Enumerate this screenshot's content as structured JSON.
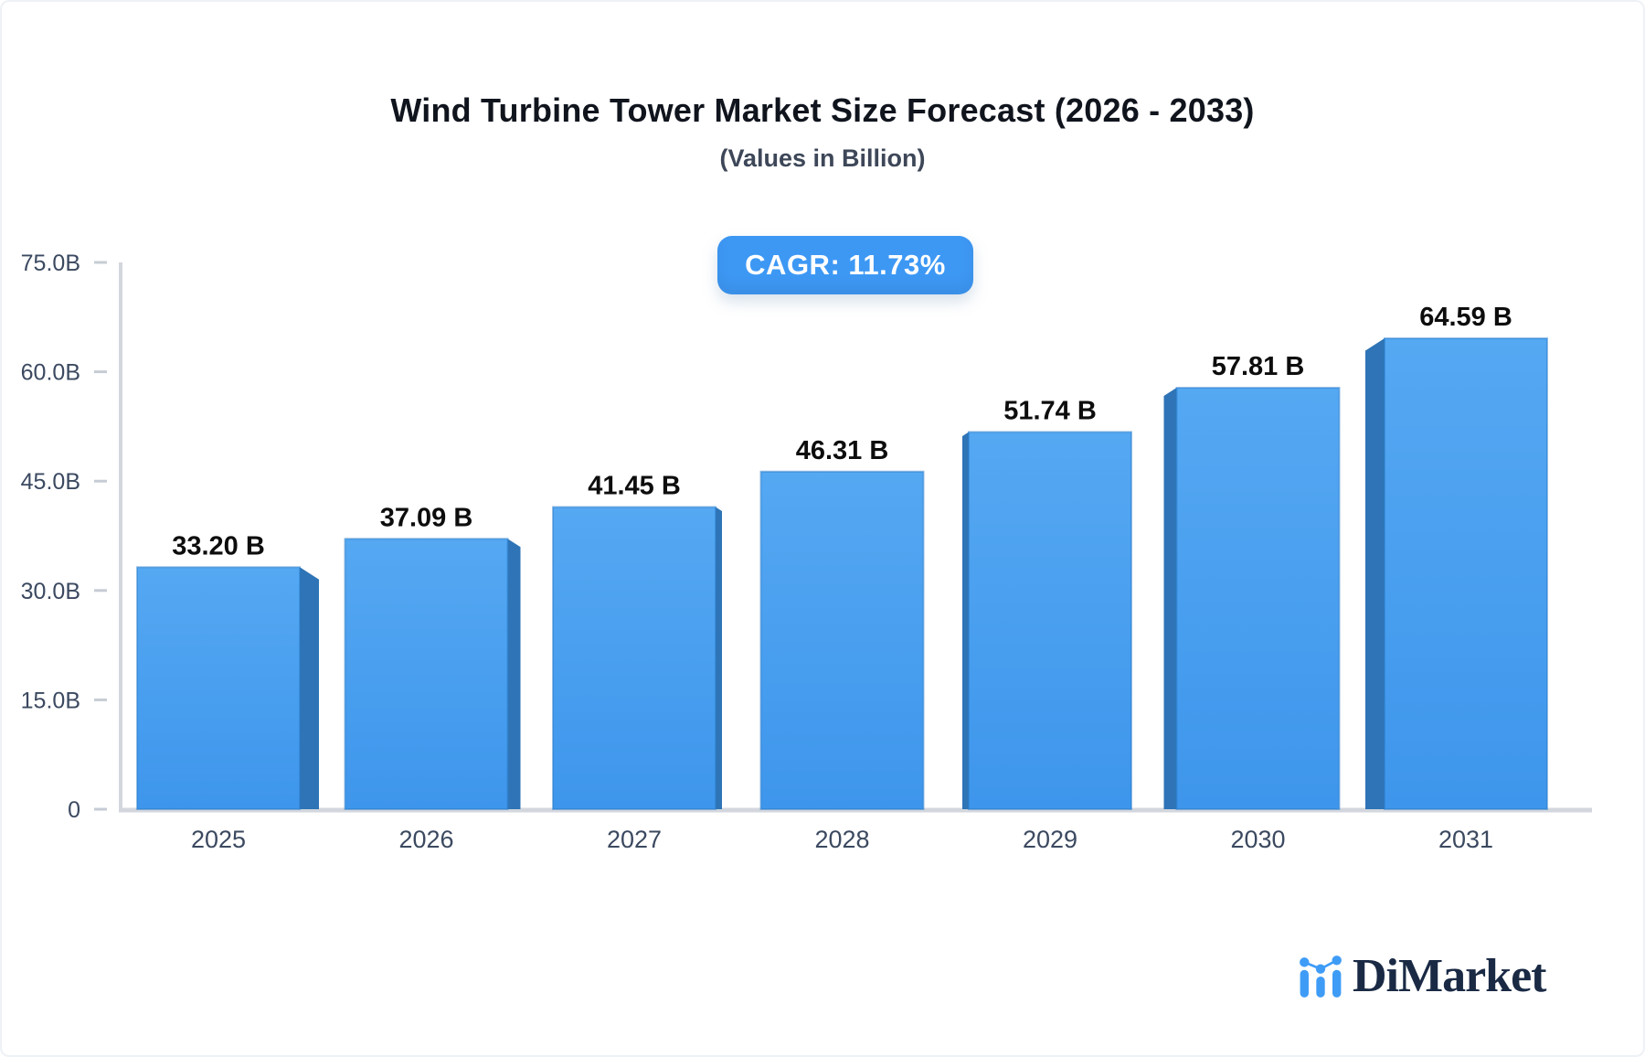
{
  "header": {
    "title": "Wind Turbine Tower Market Size Forecast (2026 - 2033)",
    "subtitle": "(Values in Billion)"
  },
  "badge": {
    "label": "CAGR: 11.73%"
  },
  "chart_data": {
    "type": "bar",
    "title": "Wind Turbine Tower Market Size Forecast (2026 - 2033)",
    "subtitle": "(Values in Billion)",
    "cagr_percent": 11.73,
    "categories": [
      "2025",
      "2026",
      "2027",
      "2028",
      "2029",
      "2030",
      "2031"
    ],
    "values": [
      33.2,
      37.09,
      41.45,
      46.31,
      51.74,
      57.81,
      64.59
    ],
    "value_labels": [
      "33.20 B",
      "37.09 B",
      "41.45 B",
      "46.31 B",
      "51.74 B",
      "57.81 B",
      "64.59 B"
    ],
    "unit": "Billion",
    "xlabel": "",
    "ylabel": "",
    "ylim": [
      0,
      75
    ],
    "yticks": [
      {
        "label": "75.0B",
        "value": 75
      },
      {
        "label": "60.0B",
        "value": 60
      },
      {
        "label": "45.0B",
        "value": 45
      },
      {
        "label": "30.0B",
        "value": 30
      },
      {
        "label": "15.0B",
        "value": 15
      },
      {
        "label": "0",
        "value": 0
      }
    ],
    "grid": false,
    "legend": "none",
    "bar_style": "3d-perspective"
  },
  "branding": {
    "logo_text": "DiMarket",
    "logo_icon": "mini-bar-chart-icon"
  },
  "colors": {
    "bar_face_top": "#55a8f2",
    "bar_face_bottom": "#3e96ec",
    "bar_face_stroke": "#2a7cc9",
    "bar_side": "#2e74b6",
    "badge_bg": "#3d98f4",
    "axis_line": "#d3d7dd",
    "tick_mark": "#c6ccd4",
    "axis_text": "#3b4960",
    "value_text": "#0d0d0d",
    "logo_blue": "#3f9cf6",
    "logo_navy": "#1a2a45"
  }
}
